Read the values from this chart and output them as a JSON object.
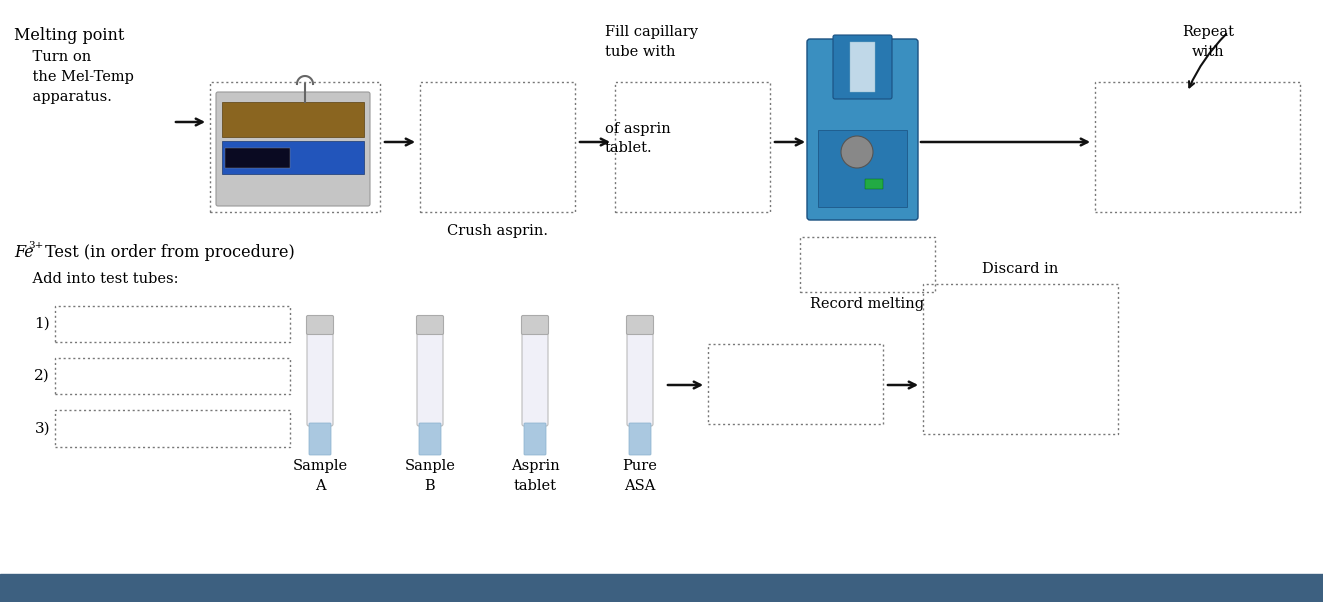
{
  "bg_color": "#ffffff",
  "footer_color": "#3d6080",
  "title_top": "Melting point",
  "subtitle_top": "    Turn on\n    the Mel-Temp\n    apparatus.",
  "fe_test_label": "Fe",
  "fe_superscript": "3+",
  "fe_test_rest": " Test (in order from procedure)",
  "add_label": "    Add into test tubes:",
  "numbered_labels": [
    "1)",
    "2)",
    "3)"
  ],
  "tube_labels": [
    [
      "Sample",
      "A"
    ],
    [
      "Sanple",
      "B"
    ],
    [
      "Asprin",
      "tablet"
    ],
    [
      "Pure",
      "ASA"
    ]
  ],
  "crush_label": "Crush asprin.",
  "fill_label_top": "Fill capillary\ntube with",
  "fill_label_bot": "of asprin\ntablet.",
  "record_label": "Record melting",
  "repeat_label": "Repeat\nwith",
  "discard_label": "Discard in",
  "arrow_color": "#111111",
  "box_line_color": "#777777",
  "tube_body_color": "#f2f2f8",
  "tube_cap_color": "#cccccc",
  "tube_liquid_color": "#aac8e0",
  "meltemp_blue": "#3a8fc0",
  "meltemp_dark": "#2060a0"
}
